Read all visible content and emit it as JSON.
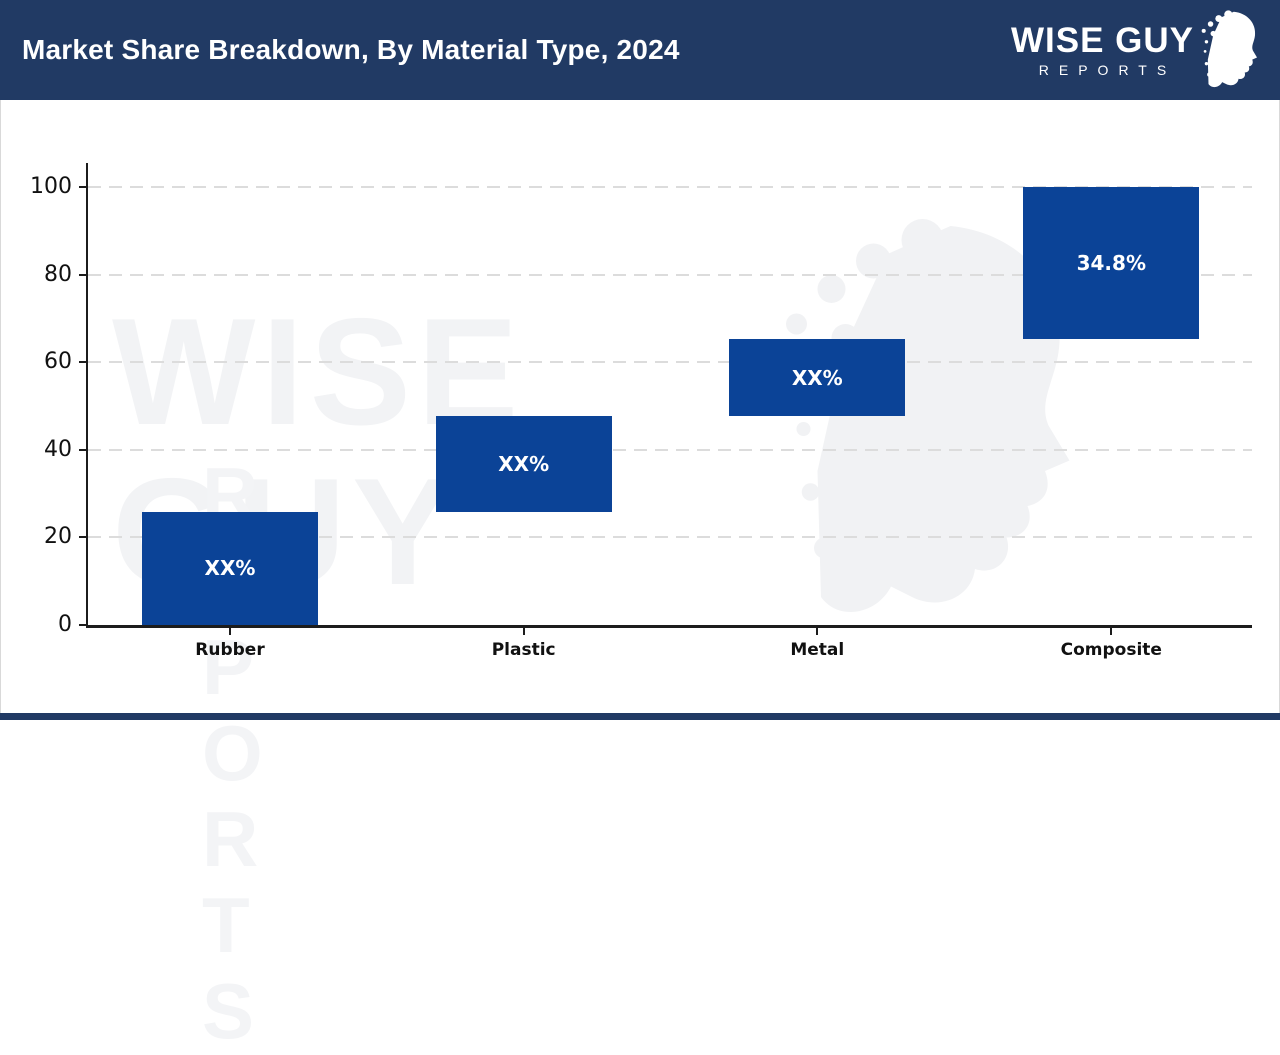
{
  "header": {
    "title": "Market Share Breakdown, By Material Type, 2024",
    "bg_color": "#213a64",
    "logo": {
      "line1": "WISE GUY",
      "line2": "REPORTS"
    }
  },
  "watermark": {
    "line1": "WISE GUY",
    "line2": "REPORTS"
  },
  "chart_data": {
    "type": "bar",
    "subtype": "waterfall",
    "title": "Market Share Breakdown, By Material Type, 2024",
    "xlabel": "",
    "ylabel": "",
    "categories": [
      "Rubber",
      "Plastic",
      "Metal",
      "Composite"
    ],
    "segments": [
      {
        "category": "Rubber",
        "start": 0,
        "end": 25.8,
        "label": "XX%"
      },
      {
        "category": "Plastic",
        "start": 25.8,
        "end": 47.8,
        "label": "XX%"
      },
      {
        "category": "Metal",
        "start": 47.8,
        "end": 65.2,
        "label": "XX%"
      },
      {
        "category": "Composite",
        "start": 65.2,
        "end": 100,
        "label": "34.8%"
      }
    ],
    "ylim": [
      0,
      100
    ],
    "yticks": [
      0,
      20,
      40,
      60,
      80,
      100
    ],
    "grid": "horizontal-dashed",
    "legend": "none",
    "bar_color": "#0b4397",
    "bar_label_color": "#ffffff",
    "axis_color": "#1c1c1c",
    "grid_color": "#dcdcdc"
  }
}
